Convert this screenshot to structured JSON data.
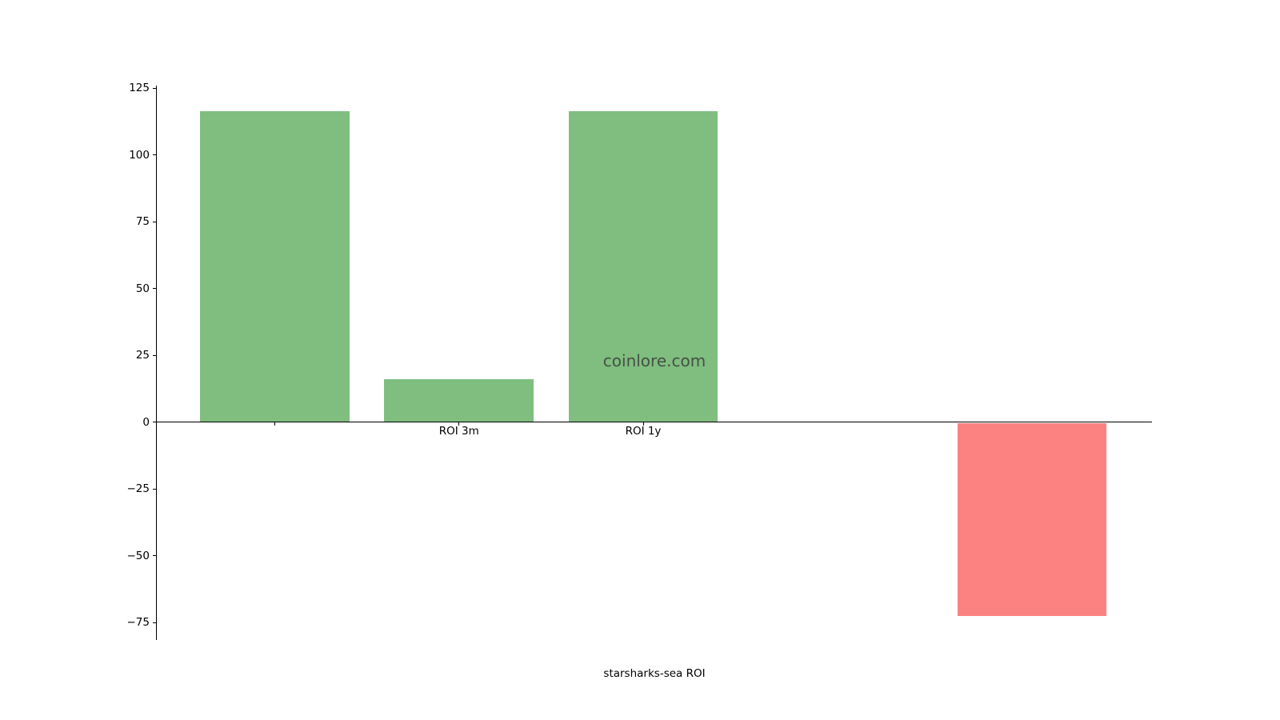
{
  "watermark": "coinlore.com",
  "caption": "starsharks-sea ROI",
  "chart_data": {
    "type": "bar",
    "title": "starsharks-sea ROI",
    "watermark": "coinlore.com",
    "categories": [
      "",
      "ROI 3m",
      "ROI 1y",
      ""
    ],
    "x": [
      0,
      1,
      2,
      4.11
    ],
    "values": [
      116.3,
      16.0,
      116.3,
      -72.3
    ],
    "bar_width_units": 0.81,
    "colors": {
      "positive": "#7fbe7f",
      "negative": "#fc8181",
      "axis": "#000000",
      "watermark_text": "#3d3d3d"
    },
    "yticks": [
      125,
      100,
      75,
      50,
      25,
      0,
      -25,
      -50,
      -75
    ],
    "xticks": [
      {
        "x": 0,
        "label": ""
      },
      {
        "x": 1,
        "label": "ROI 3m"
      },
      {
        "x": 2,
        "label": "ROI 1y"
      }
    ],
    "ylim": [
      -81.7,
      125.7
    ],
    "xlabel": "",
    "ylabel": "",
    "grid": false,
    "legend": null
  }
}
